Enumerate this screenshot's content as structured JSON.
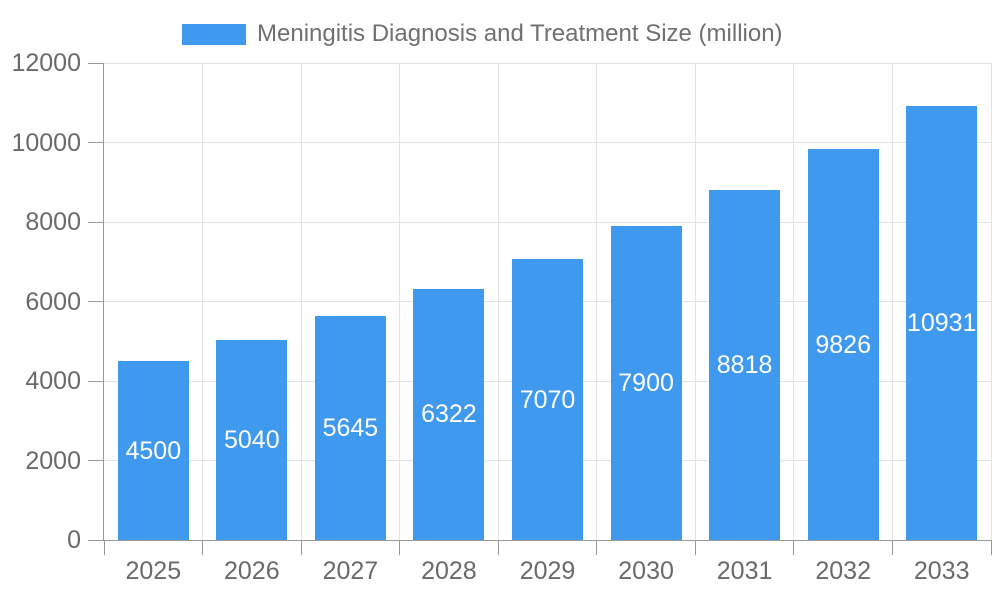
{
  "chart_data": {
    "type": "bar",
    "title": "Meningitis Diagnosis and Treatment Size (million)",
    "categories": [
      "2025",
      "2026",
      "2027",
      "2028",
      "2029",
      "2030",
      "2031",
      "2032",
      "2033"
    ],
    "values": [
      4500,
      5040,
      5645,
      6322,
      7070,
      7900,
      8818,
      9826,
      10931
    ],
    "xlabel": "",
    "ylabel": "",
    "ylim": [
      0,
      12000
    ],
    "ytick_step": 2000,
    "ytick_labels": [
      "0",
      "2000",
      "4000",
      "6000",
      "8000",
      "10000",
      "12000"
    ],
    "grid": true,
    "legend_position": "top",
    "colors": {
      "bar": "#3E99EF",
      "value_label": "#FFFFFF",
      "axis_text": "#6A6A6A",
      "legend_text": "#707070",
      "grid_line": "#E3E3E3",
      "axis_line": "#9A9A9A"
    }
  }
}
